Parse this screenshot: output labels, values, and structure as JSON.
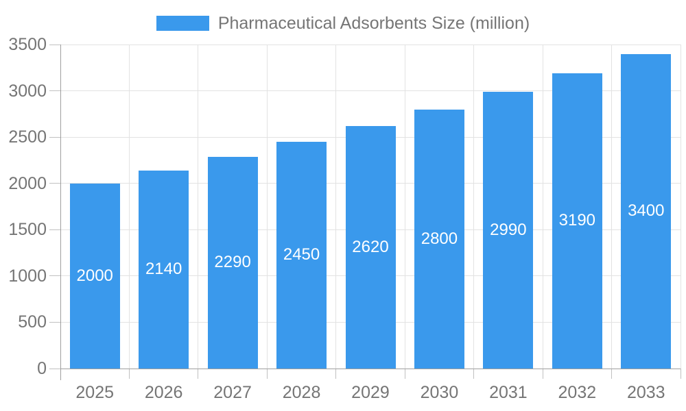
{
  "legend": {
    "label": "Pharmaceutical Adsorbents Size (million)",
    "swatch_color": "#3A99EC"
  },
  "chart_data": {
    "type": "bar",
    "title": "Pharmaceutical Adsorbents Size (million)",
    "categories": [
      "2025",
      "2026",
      "2027",
      "2028",
      "2029",
      "2030",
      "2031",
      "2032",
      "2033"
    ],
    "values": [
      2000,
      2140,
      2290,
      2450,
      2620,
      2800,
      2990,
      3190,
      3400
    ],
    "xlabel": "",
    "ylabel": "",
    "ylim": [
      0,
      3500
    ],
    "yticks": [
      0,
      500,
      1000,
      1500,
      2000,
      2500,
      3000,
      3500
    ],
    "grid": true,
    "legend_position": "top",
    "bar_color": "#3A99EC",
    "bar_label_color": "#FFFFFF",
    "axis_text_color": "#757575",
    "gridline_color": "#E2E2E2",
    "axis_line_color": "#9E9E9E"
  }
}
